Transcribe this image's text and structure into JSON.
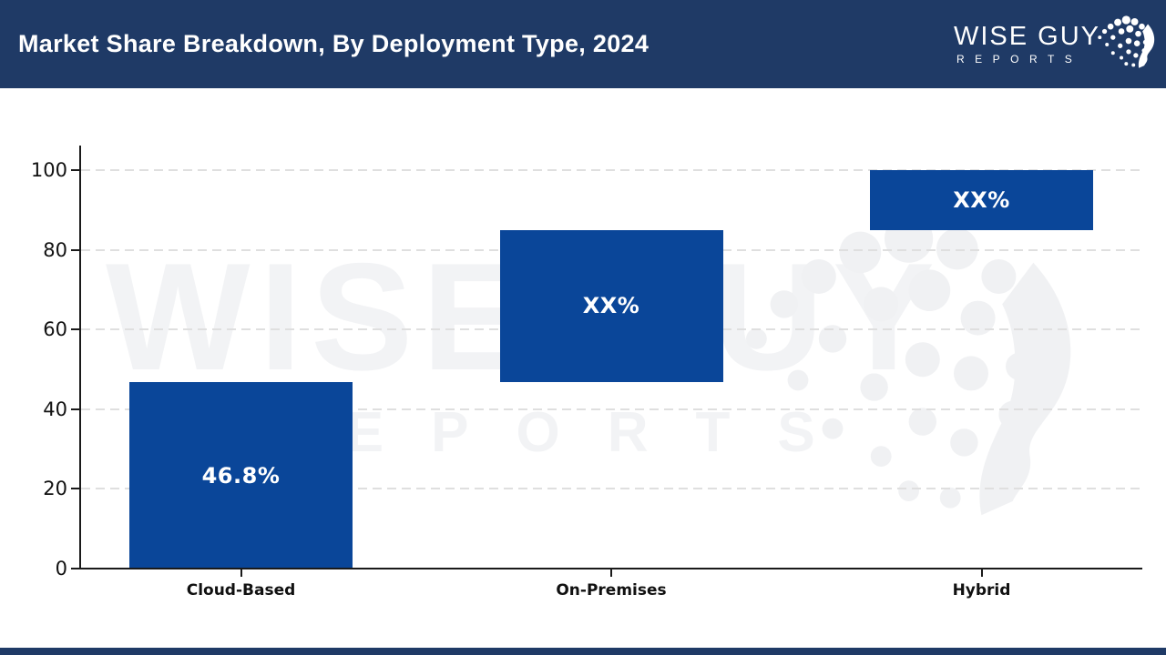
{
  "header": {
    "title": "Market Share Breakdown, By Deployment Type, 2024",
    "logo": {
      "line1": "WISE GUY",
      "line2": "REPORTS"
    }
  },
  "watermark": {
    "line1": "WISE GUY",
    "line2": "REPORTS"
  },
  "colors": {
    "header_bg": "#1f3a66",
    "bar": "#0a4699",
    "grid": "#dfdfdf",
    "watermark": "#f2f3f5",
    "axis": "#1a1a1a",
    "bar_label": "#ffffff"
  },
  "chart_data": {
    "type": "bar",
    "subtype": "floating-stacked-waterfall",
    "title": "Market Share Breakdown, By Deployment Type, 2024",
    "categories": [
      "Cloud-Based",
      "On-Premises",
      "Hybrid"
    ],
    "segments": [
      {
        "category": "Cloud-Based",
        "start": 0,
        "end": 46.8,
        "label": "46.8%"
      },
      {
        "category": "On-Premises",
        "start": 46.8,
        "end": 85,
        "label": "XX%"
      },
      {
        "category": "Hybrid",
        "start": 85,
        "end": 100,
        "label": "XX%"
      }
    ],
    "xlabel": "",
    "ylabel": "",
    "ylim": [
      0,
      100
    ],
    "yticks": [
      0,
      20,
      40,
      60,
      80,
      100
    ],
    "grid": "horizontal-dashed",
    "legend": "none"
  }
}
